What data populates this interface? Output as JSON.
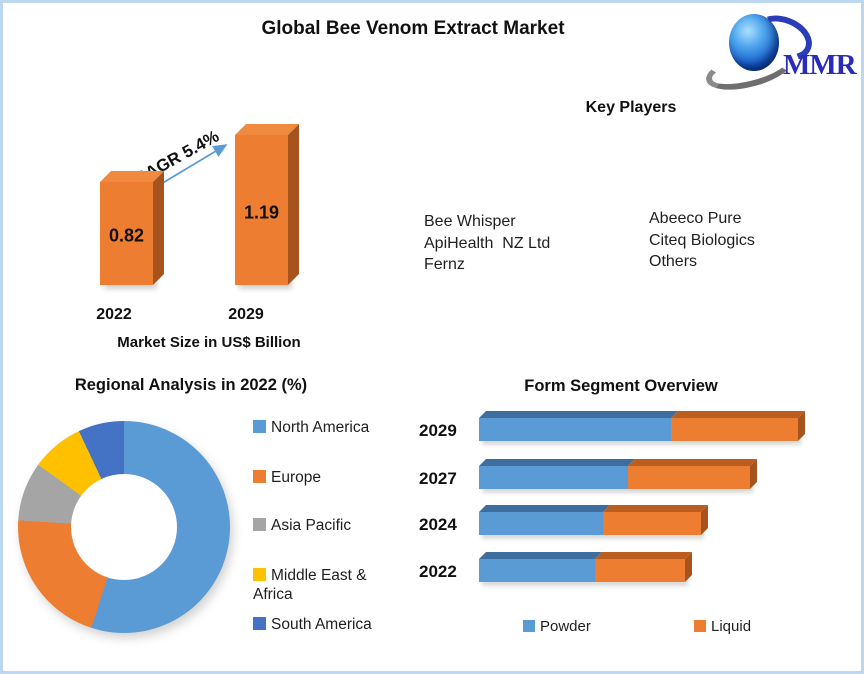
{
  "page": {
    "title": "Global Bee Venom Extract Market",
    "border_color": "#BDD7EE",
    "background": "#FFFFFF"
  },
  "logo": {
    "text": "MMR",
    "text_color": "#2B2BBB"
  },
  "key_players": {
    "heading": "Key Players",
    "column1": [
      "Bee Whisper",
      "ApiHealth  NZ Ltd",
      "Fernz"
    ],
    "column2": [
      "Abeeco Pure",
      "Citeq Biologics",
      "Others"
    ]
  },
  "chart_data": [
    {
      "type": "bar",
      "title": "Market Size in US$ Billion",
      "categories": [
        "2022",
        "2029"
      ],
      "values": [
        0.82,
        1.19
      ],
      "data_labels": [
        "0.82",
        "1.19"
      ],
      "annotation": "CAGR 5.4%",
      "ylim": [
        0,
        1.3
      ],
      "style": "3d-orange-bars",
      "colors": {
        "front": "#ED7D31",
        "top": "#F08A3E",
        "side": "#A6531D",
        "arrow": "#5B9BD5"
      }
    },
    {
      "type": "pie",
      "donut": true,
      "title": "Regional Analysis in 2022 (%)",
      "labels": [
        "North America",
        "Europe",
        "Asia Pacific",
        "Middle East & Africa",
        "South America"
      ],
      "values": [
        55,
        21,
        9,
        8,
        7
      ],
      "colors": [
        "#5B9BD5",
        "#ED7D31",
        "#A5A5A5",
        "#FFC000",
        "#4472C4"
      ],
      "legend_position": "right"
    },
    {
      "type": "bar",
      "orientation": "horizontal",
      "stacked": true,
      "title": "Form Segment Overview",
      "categories": [
        "2029",
        "2027",
        "2024",
        "2022"
      ],
      "series": [
        {
          "name": "Powder",
          "values": [
            60,
            46.5,
            38.8,
            36.3
          ]
        },
        {
          "name": "Liquid",
          "values": [
            39.7,
            38.1,
            30.6,
            28.1
          ]
        }
      ],
      "value_unit": "estimated % of chart width (no value axis shown)",
      "legend_position": "bottom",
      "colors": {
        "Powder": "#5B9BD5",
        "Liquid": "#ED7D31",
        "powder_top": "#3D6E9E",
        "liquid_top": "#BA5D1E",
        "liquid_cap": "#A6531D"
      }
    }
  ]
}
